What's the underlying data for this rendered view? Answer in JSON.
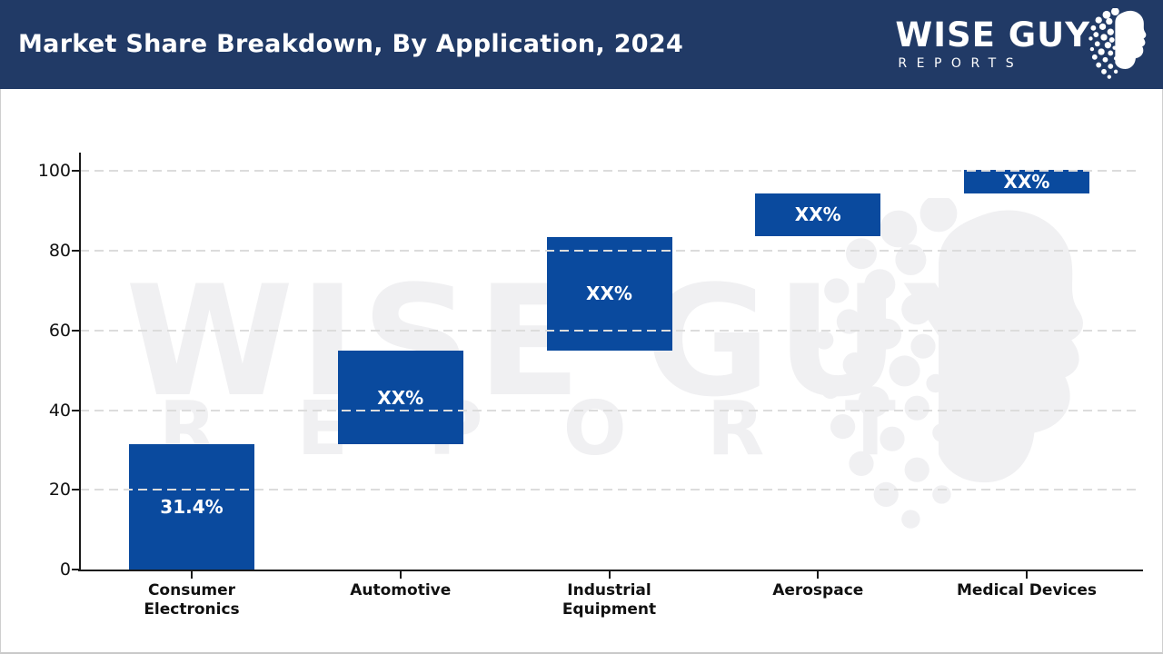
{
  "header": {
    "title": "Market Share Breakdown, By Application, 2024",
    "logo": {
      "name": "WISE GUY",
      "subname": "REPORTS"
    }
  },
  "watermark": {
    "line1": "WISE GUY",
    "line2": "REPORTS"
  },
  "chart_data": {
    "type": "bar",
    "subtype": "waterfall",
    "title": "Market Share Breakdown, By Application, 2024",
    "categories": [
      "Consumer Electronics",
      "Automotive",
      "Industrial Equipment",
      "Aerospace",
      "Medical Devices"
    ],
    "segments": [
      {
        "category": "Consumer Electronics",
        "start": 0,
        "end": 31.4,
        "label": "31.4%"
      },
      {
        "category": "Automotive",
        "start": 31.4,
        "end": 55,
        "label": "XX%"
      },
      {
        "category": "Industrial Equipment",
        "start": 55,
        "end": 83.5,
        "label": "XX%"
      },
      {
        "category": "Aerospace",
        "start": 83.7,
        "end": 94.5,
        "label": "XX%"
      },
      {
        "category": "Medical Devices",
        "start": 94.5,
        "end": 100.3,
        "label": "XX%"
      }
    ],
    "xlabel": "",
    "ylabel": "",
    "yticks": [
      0,
      20,
      40,
      60,
      80,
      100
    ],
    "ylim": [
      0,
      105
    ],
    "grid": true,
    "grid_style": "dashed",
    "legend": false,
    "colors": {
      "bar": "#0a4a9e",
      "bar_label": "#ffffff",
      "header_bg": "#213a66",
      "grid": "#dcdcdc",
      "axis": "#1a1a1a",
      "watermark": "#f0f0f2"
    }
  }
}
